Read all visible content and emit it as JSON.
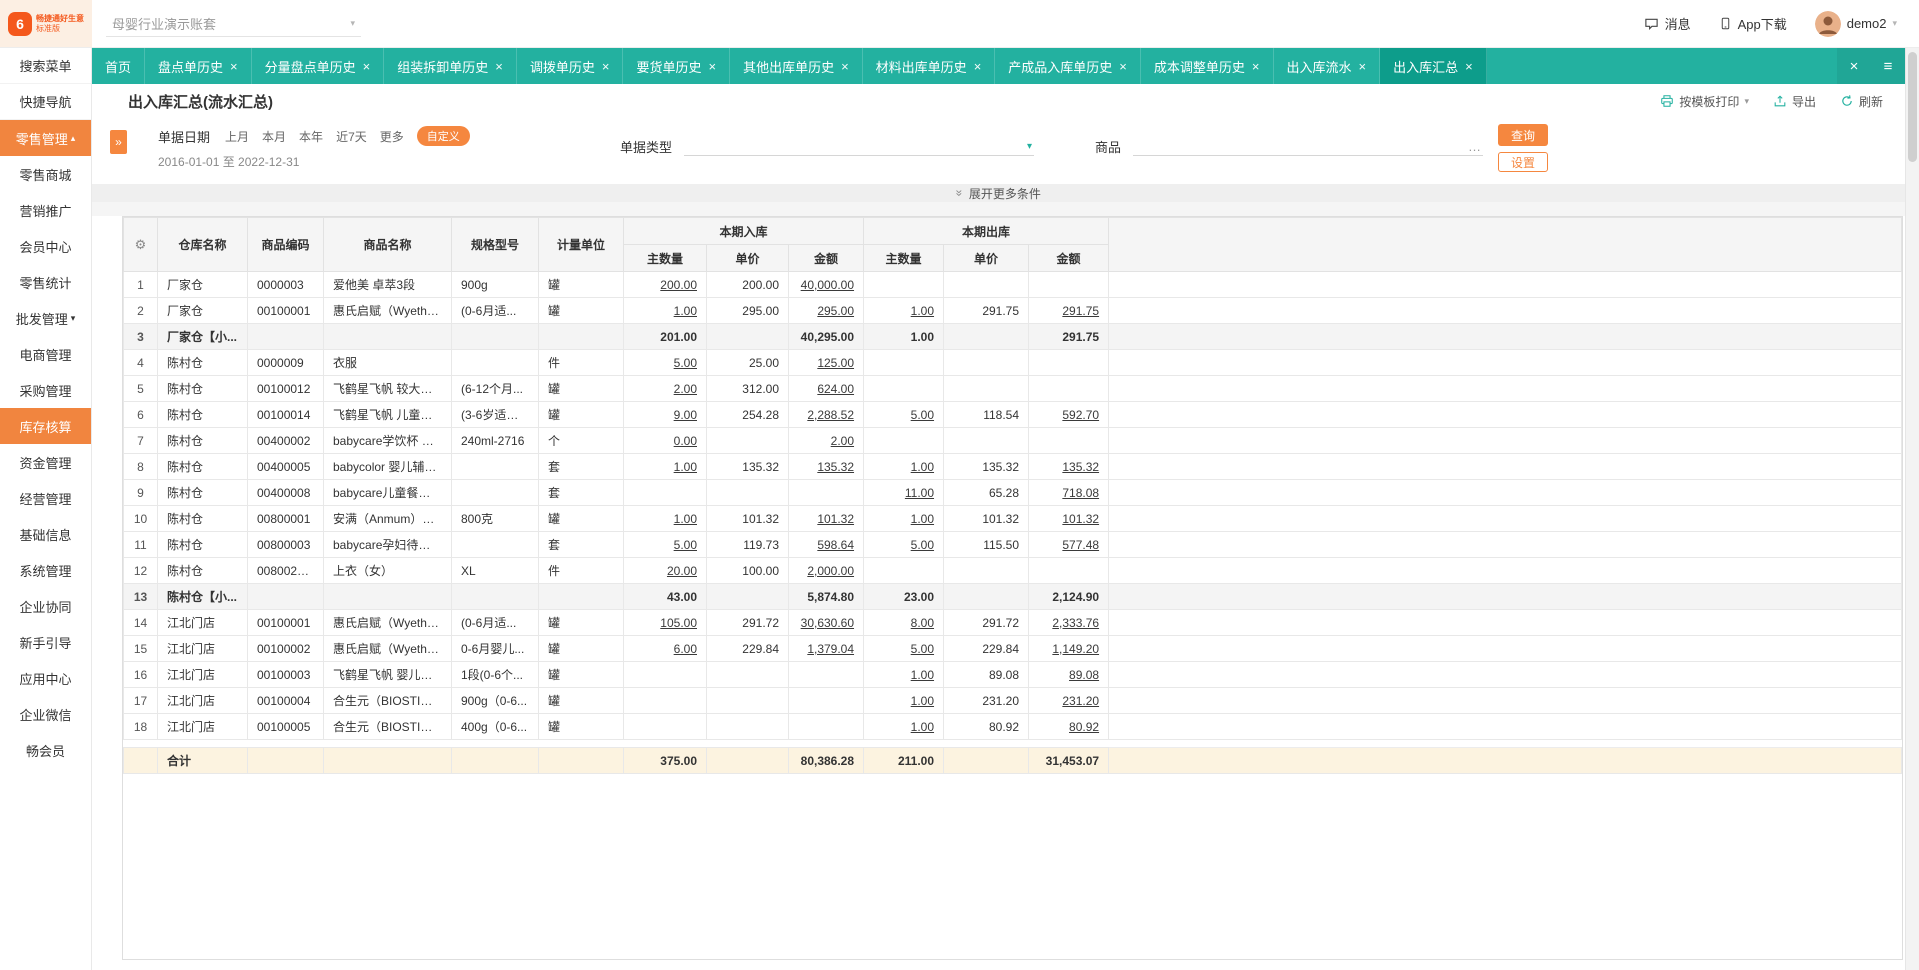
{
  "topbar": {
    "logo_title": "畅捷通好生意",
    "logo_subtitle": "标准版",
    "logo_glyph": "6",
    "account": "母婴行业演示账套",
    "messages_label": "消息",
    "app_download_label": "App下载",
    "username": "demo2"
  },
  "tabbar": {
    "tabs": [
      {
        "label": "首页",
        "closable": false,
        "active": false
      },
      {
        "label": "盘点单历史",
        "closable": true,
        "active": false
      },
      {
        "label": "分量盘点单历史",
        "closable": true,
        "active": false
      },
      {
        "label": "组装拆卸单历史",
        "closable": true,
        "active": false
      },
      {
        "label": "调拨单历史",
        "closable": true,
        "active": false
      },
      {
        "label": "要货单历史",
        "closable": true,
        "active": false
      },
      {
        "label": "其他出库单历史",
        "closable": true,
        "active": false
      },
      {
        "label": "材料出库单历史",
        "closable": true,
        "active": false
      },
      {
        "label": "产成品入库单历史",
        "closable": true,
        "active": false
      },
      {
        "label": "成本调整单历史",
        "closable": true,
        "active": false
      },
      {
        "label": "出入库流水",
        "closable": true,
        "active": false
      },
      {
        "label": "出入库汇总",
        "closable": true,
        "active": true
      }
    ],
    "close_all_glyph": "×",
    "menu_glyph": "≡"
  },
  "sidebar": {
    "items": [
      {
        "label": "搜索菜单",
        "style": "plain"
      },
      {
        "label": "快捷导航",
        "style": "plain"
      },
      {
        "label": "零售管理",
        "style": "group-active",
        "arrow": "up"
      },
      {
        "label": "零售商城",
        "style": "plain"
      },
      {
        "label": "营销推广",
        "style": "plain"
      },
      {
        "label": "会员中心",
        "style": "plain"
      },
      {
        "label": "零售统计",
        "style": "plain"
      },
      {
        "label": "批发管理",
        "style": "plain",
        "arrow": "down"
      },
      {
        "label": "电商管理",
        "style": "plain"
      },
      {
        "label": "采购管理",
        "style": "plain"
      },
      {
        "label": "库存核算",
        "style": "active"
      },
      {
        "label": "资金管理",
        "style": "plain"
      },
      {
        "label": "经营管理",
        "style": "plain"
      },
      {
        "label": "基础信息",
        "style": "plain"
      },
      {
        "label": "系统管理",
        "style": "plain"
      },
      {
        "label": "企业协同",
        "style": "plain"
      },
      {
        "label": "新手引导",
        "style": "plain"
      },
      {
        "label": "应用中心",
        "style": "plain"
      },
      {
        "label": "企业微信",
        "style": "plain"
      },
      {
        "label": "畅会员",
        "style": "plain"
      }
    ]
  },
  "page": {
    "title": "出入库汇总(流水汇总)",
    "print_label": "按模板打印",
    "export_label": "导出",
    "refresh_label": "刷新"
  },
  "filters": {
    "date_label": "单据日期",
    "date_quick_options": [
      "上月",
      "本月",
      "本年",
      "近7天",
      "更多"
    ],
    "date_custom_label": "自定义",
    "date_range": "2016-01-01 至 2022-12-31",
    "doc_type_label": "单据类型",
    "product_label": "商品",
    "query_button": "查询",
    "settings_button": "设置",
    "expand_more_label": "展开更多条件"
  },
  "table": {
    "columns": {
      "warehouse": "仓库名称",
      "code": "商品编码",
      "name": "商品名称",
      "spec": "规格型号",
      "unit": "计量单位",
      "in_group": "本期入库",
      "out_group": "本期出库",
      "qty": "主数量",
      "price": "单价",
      "amount": "金额"
    },
    "rows": [
      {
        "type": "data",
        "idx": "1",
        "warehouse": "厂家仓",
        "code": "0000003",
        "name": "爱他美 卓萃3段",
        "spec": "900g",
        "unit": "罐",
        "in_qty": "200.00",
        "in_price": "200.00",
        "in_amount": "40,000.00",
        "out_qty": "",
        "out_price": "",
        "out_amount": ""
      },
      {
        "type": "data",
        "idx": "2",
        "warehouse": "厂家仓",
        "code": "00100001",
        "name": "惠氏启赋（Wyeth illu...",
        "spec": "(0-6月适...",
        "unit": "罐",
        "in_qty": "1.00",
        "in_price": "295.00",
        "in_amount": "295.00",
        "out_qty": "1.00",
        "out_price": "291.75",
        "out_amount": "291.75"
      },
      {
        "type": "subtotal",
        "idx": "3",
        "warehouse": "厂家仓【小...",
        "code": "",
        "name": "",
        "spec": "",
        "unit": "",
        "in_qty": "201.00",
        "in_price": "",
        "in_amount": "40,295.00",
        "out_qty": "1.00",
        "out_price": "",
        "out_amount": "291.75"
      },
      {
        "type": "data",
        "idx": "4",
        "warehouse": "陈村仓",
        "code": "0000009",
        "name": "衣服",
        "spec": "",
        "unit": "件",
        "in_qty": "5.00",
        "in_price": "25.00",
        "in_amount": "125.00",
        "out_qty": "",
        "out_price": "",
        "out_amount": ""
      },
      {
        "type": "data",
        "idx": "5",
        "warehouse": "陈村仓",
        "code": "00100012",
        "name": "飞鹤星飞帆 较大婴儿配...",
        "spec": "(6-12个月...",
        "unit": "罐",
        "in_qty": "2.00",
        "in_price": "312.00",
        "in_amount": "624.00",
        "out_qty": "",
        "out_price": "",
        "out_amount": ""
      },
      {
        "type": "data",
        "idx": "6",
        "warehouse": "陈村仓",
        "code": "00100014",
        "name": "飞鹤星飞帆 儿童奶粉 4...",
        "spec": "(3-6岁适用)...",
        "unit": "罐",
        "in_qty": "9.00",
        "in_price": "254.28",
        "in_amount": "2,288.52",
        "out_qty": "5.00",
        "out_price": "118.54",
        "out_amount": "592.70"
      },
      {
        "type": "data",
        "idx": "7",
        "warehouse": "陈村仓",
        "code": "00400002",
        "name": "babycare学饮杯 儿童...",
        "spec": "240ml-2716",
        "unit": "个",
        "in_qty": "0.00",
        "in_price": "",
        "in_amount": "2.00",
        "out_qty": "",
        "out_price": "",
        "out_amount": ""
      },
      {
        "type": "data",
        "idx": "8",
        "warehouse": "陈村仓",
        "code": "00400005",
        "name": "babycolor 婴儿辅食机...",
        "spec": "",
        "unit": "套",
        "in_qty": "1.00",
        "in_price": "135.32",
        "in_amount": "135.32",
        "out_qty": "1.00",
        "out_price": "135.32",
        "out_amount": "135.32"
      },
      {
        "type": "data",
        "idx": "9",
        "warehouse": "陈村仓",
        "code": "00400008",
        "name": "babycare儿童餐具 婴...",
        "spec": "",
        "unit": "套",
        "in_qty": "",
        "in_price": "",
        "in_amount": "",
        "out_qty": "11.00",
        "out_price": "65.28",
        "out_amount": "718.08"
      },
      {
        "type": "data",
        "idx": "10",
        "warehouse": "陈村仓",
        "code": "00800001",
        "name": "安满（Anmum）智孕...",
        "spec": "800克",
        "unit": "罐",
        "in_qty": "1.00",
        "in_price": "101.32",
        "in_amount": "101.32",
        "out_qty": "1.00",
        "out_price": "101.32",
        "out_amount": "101.32"
      },
      {
        "type": "data",
        "idx": "11",
        "warehouse": "陈村仓",
        "code": "00800003",
        "name": "babycare孕妇待产包...",
        "spec": "",
        "unit": "套",
        "in_qty": "5.00",
        "in_price": "119.73",
        "in_amount": "598.64",
        "out_qty": "5.00",
        "out_price": "115.50",
        "out_amount": "577.48"
      },
      {
        "type": "data",
        "idx": "12",
        "warehouse": "陈村仓",
        "code": "008002000...",
        "name": "上衣（女）",
        "spec": "XL",
        "unit": "件",
        "in_qty": "20.00",
        "in_price": "100.00",
        "in_amount": "2,000.00",
        "out_qty": "",
        "out_price": "",
        "out_amount": ""
      },
      {
        "type": "subtotal",
        "idx": "13",
        "warehouse": "陈村仓【小...",
        "code": "",
        "name": "",
        "spec": "",
        "unit": "",
        "in_qty": "43.00",
        "in_price": "",
        "in_amount": "5,874.80",
        "out_qty": "23.00",
        "out_price": "",
        "out_amount": "2,124.90"
      },
      {
        "type": "data",
        "idx": "14",
        "warehouse": "江北门店",
        "code": "00100001",
        "name": "惠氏启赋（Wyeth illu...",
        "spec": "(0-6月适...",
        "unit": "罐",
        "in_qty": "105.00",
        "in_price": "291.72",
        "in_amount": "30,630.60",
        "out_qty": "8.00",
        "out_price": "291.72",
        "out_amount": "2,333.76"
      },
      {
        "type": "data",
        "idx": "15",
        "warehouse": "江北门店",
        "code": "00100002",
        "name": "惠氏启赋（Wyeth illu...",
        "spec": "0-6月婴儿...",
        "unit": "罐",
        "in_qty": "6.00",
        "in_price": "229.84",
        "in_amount": "1,379.04",
        "out_qty": "5.00",
        "out_price": "229.84",
        "out_amount": "1,149.20"
      },
      {
        "type": "data",
        "idx": "16",
        "warehouse": "江北门店",
        "code": "00100003",
        "name": "飞鹤星飞帆 婴儿配方奶...",
        "spec": "1段(0-6个...",
        "unit": "罐",
        "in_qty": "",
        "in_price": "",
        "in_amount": "",
        "out_qty": "1.00",
        "out_price": "89.08",
        "out_amount": "89.08"
      },
      {
        "type": "data",
        "idx": "17",
        "warehouse": "江北门店",
        "code": "00100004",
        "name": "合生元（BIOSTIME）...",
        "spec": "900g（0-6...",
        "unit": "罐",
        "in_qty": "",
        "in_price": "",
        "in_amount": "",
        "out_qty": "1.00",
        "out_price": "231.20",
        "out_amount": "231.20"
      },
      {
        "type": "data",
        "idx": "18",
        "warehouse": "江北门店",
        "code": "00100005",
        "name": "合生元（BIOSTIME）...",
        "spec": "400g（0-6...",
        "unit": "罐",
        "in_qty": "",
        "in_price": "",
        "in_amount": "",
        "out_qty": "1.00",
        "out_price": "80.92",
        "out_amount": "80.92"
      },
      {
        "type": "total",
        "idx": "",
        "warehouse": "合计",
        "code": "",
        "name": "",
        "spec": "",
        "unit": "",
        "in_qty": "375.00",
        "in_price": "",
        "in_amount": "80,386.28",
        "out_qty": "211.00",
        "out_price": "",
        "out_amount": "31,453.07"
      }
    ]
  }
}
